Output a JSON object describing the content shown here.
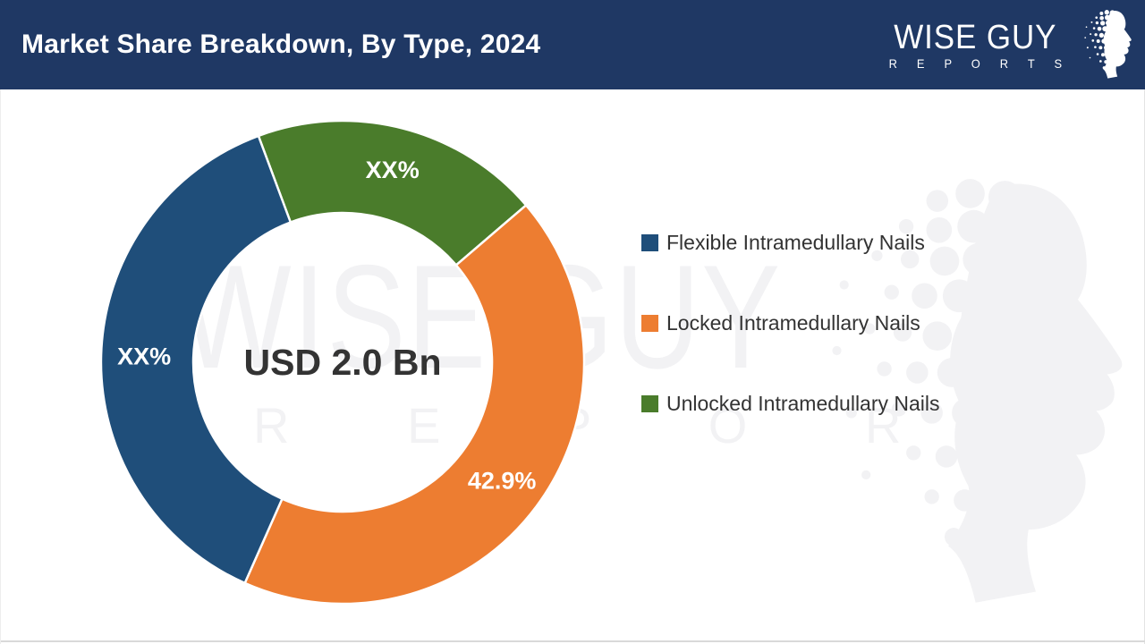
{
  "header": {
    "title": "Market Share Breakdown, By Type, 2024",
    "bg_color": "#1f3864",
    "logo": {
      "line1": "WISE GUY",
      "line2": "R E P O R T S",
      "face_icon": "dotted-head-profile-icon"
    }
  },
  "chart_data": {
    "type": "pie",
    "subtype": "donut",
    "title": "Market Share Breakdown, By Type, 2024",
    "center_label": "USD 2.0 Bn",
    "start_angle_deg": -20.4,
    "slices": [
      {
        "name": "Unlocked Intramedullary Nails",
        "value": 19.4,
        "label": "XX%",
        "color": "#4a7c2b"
      },
      {
        "name": "Locked Intramedullary Nails",
        "value": 42.9,
        "label": "42.9%",
        "color": "#ed7d31"
      },
      {
        "name": "Flexible Intramedullary Nails",
        "value": 37.7,
        "label": "XX%",
        "color": "#1f4e7a"
      }
    ],
    "legend_position": "right",
    "legend": [
      {
        "label": "Flexible Intramedullary Nails",
        "color": "#1f4e7a"
      },
      {
        "label": "Locked Intramedullary Nails",
        "color": "#ed7d31"
      },
      {
        "label": "Unlocked Intramedullary Nails",
        "color": "#4a7c2b"
      }
    ]
  },
  "watermark": {
    "line1": "WISE GUY",
    "line2": "R E P O R T S",
    "face_icon": "dotted-head-profile-icon"
  }
}
